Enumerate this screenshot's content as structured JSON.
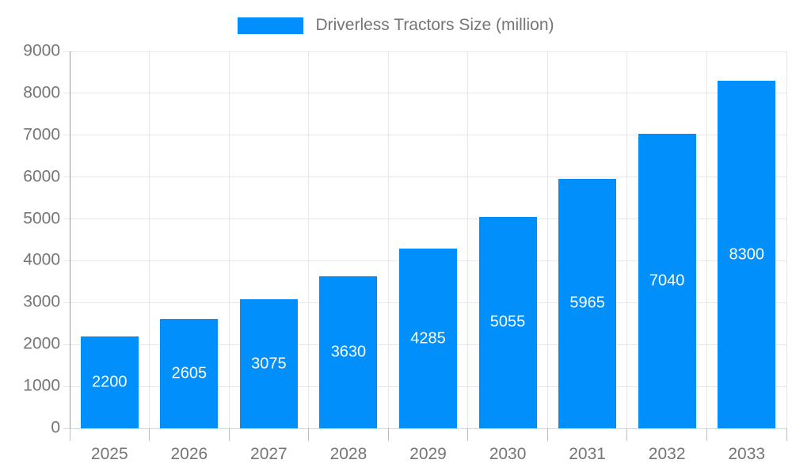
{
  "legend": {
    "label": "Driverless Tractors Size (million)",
    "swatch_color": "#008FFB"
  },
  "chart_data": {
    "type": "bar",
    "title": "",
    "xlabel": "",
    "ylabel": "",
    "categories": [
      "2025",
      "2026",
      "2027",
      "2028",
      "2029",
      "2030",
      "2031",
      "2032",
      "2033"
    ],
    "values": [
      2200,
      2605,
      3075,
      3630,
      4285,
      5055,
      5965,
      7040,
      8300
    ],
    "value_labels": [
      "2200",
      "2605",
      "3075",
      "3630",
      "4285",
      "5055",
      "5965",
      "7040",
      "8300"
    ],
    "series_name": "Driverless Tractors Size (million)",
    "ylim": [
      0,
      9000
    ],
    "yticks": [
      0,
      1000,
      2000,
      3000,
      4000,
      5000,
      6000,
      7000,
      8000,
      9000
    ],
    "grid": true,
    "legend_position": "top",
    "colors": {
      "bar": "#008FFB",
      "value_label": "#ffffff",
      "axis_label": "#757575",
      "grid": "#e6e6e6",
      "baseline": "#d6d6d6",
      "y_axis_line": "#979797",
      "tick": "#bdbdbd"
    }
  }
}
